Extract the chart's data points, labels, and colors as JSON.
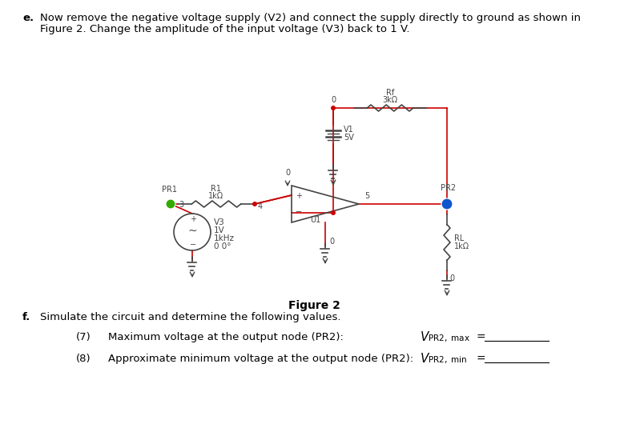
{
  "title_e": "e.",
  "text_e_line1": "Now remove the negative voltage supply (V2) and connect the supply directly to ground as shown in",
  "text_e_line2": "Figure 2. Change the amplitude of the input voltage (V3) back to 1 V.",
  "figure_label": "Figure 2",
  "text_f": "f.",
  "text_f2": "Simulate the circuit and determine the following values.",
  "q7_num": "(7)",
  "q7_text": "Maximum voltage at the output node (PR2):",
  "q8_num": "(8)",
  "q8_text": "Approximate minimum voltage at the output node (PR2):",
  "wire_color": "#cc0000",
  "wire_dotted_color": "#cc0000",
  "ground_color": "#444444",
  "resistor_color": "#444444",
  "node_color_green": "#33aa00",
  "node_color_blue": "#1155cc",
  "bg_color": "#ffffff",
  "text_color": "#000000"
}
